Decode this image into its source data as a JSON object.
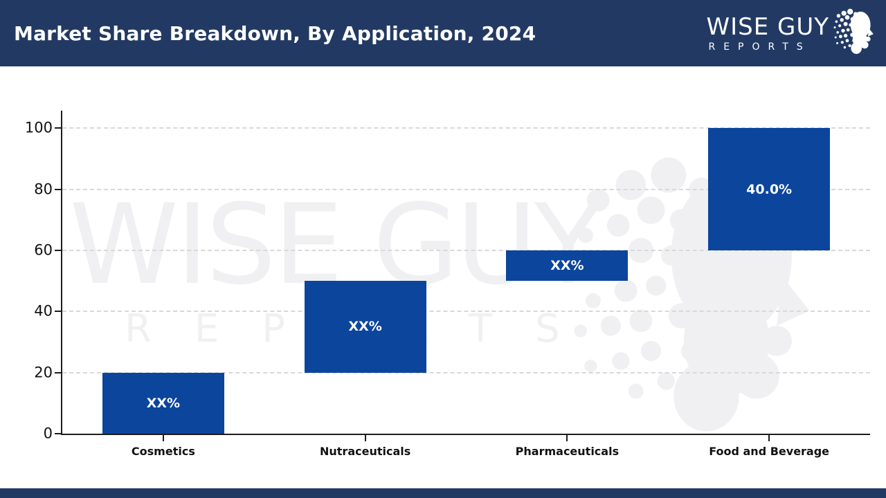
{
  "header": {
    "title": "Market Share Breakdown, By Application, 2024",
    "bg_color": "#223a63",
    "logo": {
      "line1": "WISE GUY",
      "line2": "REPORTS"
    }
  },
  "watermark": {
    "line1": "WISE GUY",
    "line2": "REPORTS"
  },
  "chart_data": {
    "type": "bar",
    "subtype": "floating-waterfall",
    "title": "Market Share Breakdown, By Application, 2024",
    "categories": [
      "Cosmetics",
      "Nutraceuticals",
      "Pharmaceuticals",
      "Food and Beverage"
    ],
    "bars": [
      {
        "category": "Cosmetics",
        "start": 0,
        "end": 20,
        "label": "XX%"
      },
      {
        "category": "Nutraceuticals",
        "start": 20,
        "end": 50,
        "label": "XX%"
      },
      {
        "category": "Pharmaceuticals",
        "start": 50,
        "end": 60,
        "label": "XX%"
      },
      {
        "category": "Food and Beverage",
        "start": 60,
        "end": 100,
        "label": "40.0%"
      }
    ],
    "yticks": [
      0,
      20,
      40,
      60,
      80,
      100
    ],
    "ylim": [
      0,
      105.7
    ],
    "bar_color": "#0c459c",
    "grid": "dashed-horizontal",
    "gridline_color": "#d8d8d8",
    "legend": "none",
    "xlabel": "",
    "ylabel": ""
  },
  "footer": {
    "bg_color": "#223a63"
  }
}
